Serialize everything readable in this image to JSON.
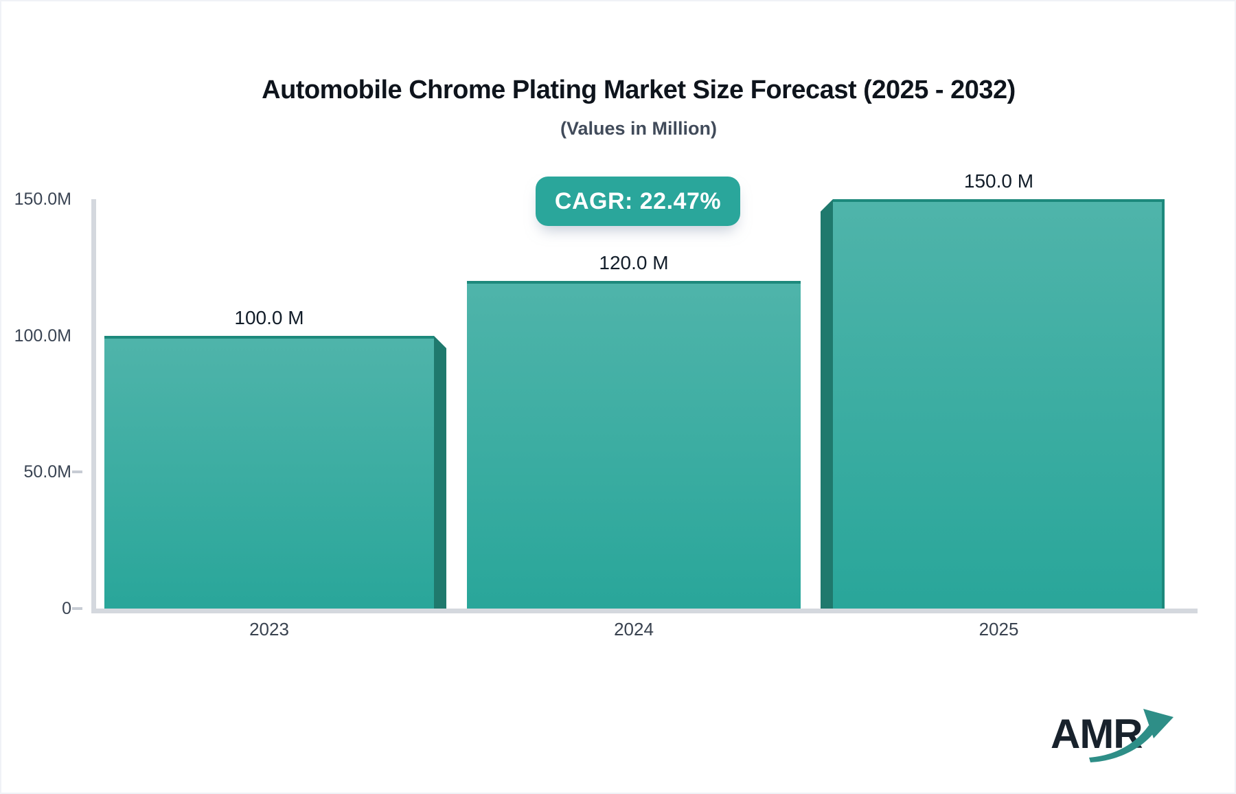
{
  "header": {
    "title": "Automobile Chrome Plating Market Size Forecast (2025 - 2032)",
    "subtitle": "(Values in Million)"
  },
  "badge": {
    "label": "CAGR: 22.47%",
    "background": "#2aa69b",
    "text_color": "#ffffff"
  },
  "logo": {
    "text": "AMR",
    "text_color": "#18222c",
    "arrow_color": "#2e8e87"
  },
  "chart_data": {
    "type": "bar",
    "title": "Automobile Chrome Plating Market Size Forecast (2025 - 2032)",
    "subtitle": "(Values in Million)",
    "unit": "Million",
    "categories": [
      "2023",
      "2024",
      "2025"
    ],
    "values": [
      100,
      120,
      150
    ],
    "value_labels": [
      "100.0 M",
      "120.0 M",
      "150.0 M"
    ],
    "cagr_annotation": "CAGR: 22.47%",
    "ylim": [
      0,
      150
    ],
    "y_ticks": [
      {
        "label": "150.0M",
        "value": 150,
        "tick_visible": false
      },
      {
        "label": "100.0M",
        "value": 100,
        "tick_visible": false
      },
      {
        "label": "50.0M",
        "value": 50,
        "tick_visible": true
      },
      {
        "label": "0",
        "value": 0,
        "tick_visible": true
      }
    ],
    "grid": false,
    "legend": false,
    "colors": {
      "bar_gradient_top": "#4fb4aa",
      "bar_gradient_bottom": "#29a69a",
      "bar_top_edge": "#1d897c",
      "bar_side_3d": "#1f796d",
      "axis_line": "#d4d8de",
      "axis_text": "#3a4453",
      "value_text": "#121d29"
    }
  }
}
